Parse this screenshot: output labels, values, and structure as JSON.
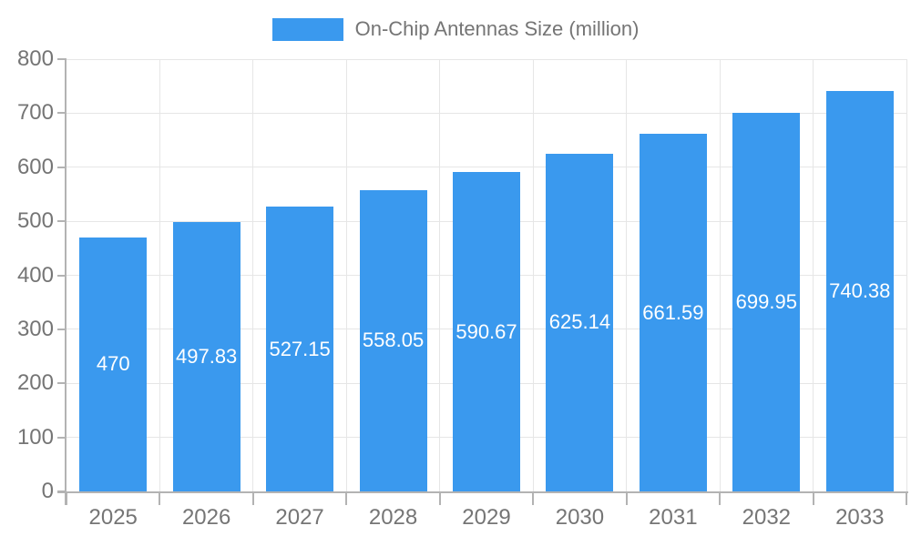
{
  "chart_data": {
    "type": "bar",
    "title": "On-Chip Antennas Size (million)",
    "legend": [
      "On-Chip Antennas Size (million)"
    ],
    "legend_position": "top-center",
    "categories": [
      "2025",
      "2026",
      "2027",
      "2028",
      "2029",
      "2030",
      "2031",
      "2032",
      "2033"
    ],
    "values": [
      470,
      497.83,
      527.15,
      558.05,
      590.67,
      625.14,
      661.59,
      699.95,
      740.38
    ],
    "value_labels": [
      "470",
      "497.83",
      "527.15",
      "558.05",
      "590.67",
      "625.14",
      "661.59",
      "699.95",
      "740.38"
    ],
    "xlabel": "",
    "ylabel": "",
    "ylim": [
      0,
      800
    ],
    "ytick_step": 100,
    "yticks": [
      "0",
      "100",
      "200",
      "300",
      "400",
      "500",
      "600",
      "700",
      "800"
    ],
    "grid": true,
    "colors": {
      "bar": "#3a99ee",
      "value_label": "#ffffff",
      "gridline": "#e6e6e6",
      "axis": "#b3b3b3",
      "tick_label": "#757575",
      "legend_text": "#757575",
      "background": "#ffffff"
    }
  }
}
